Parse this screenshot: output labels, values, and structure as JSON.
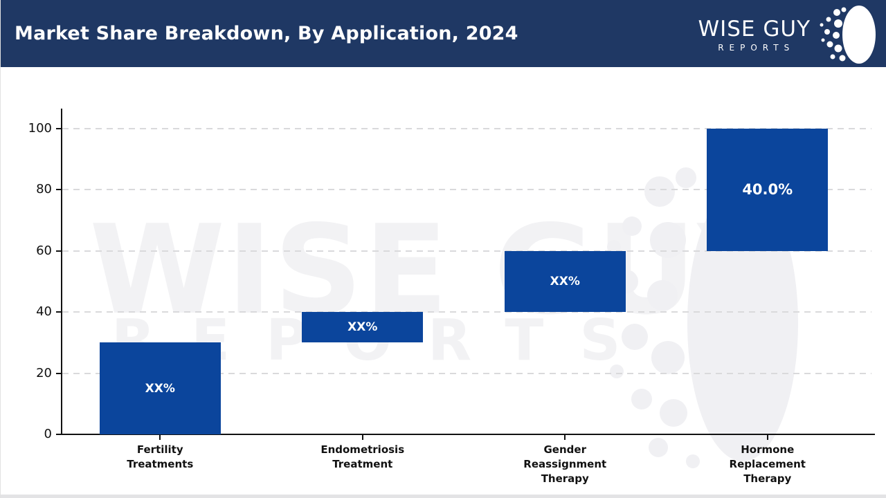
{
  "header": {
    "title": "Market Share Breakdown, By Application, 2024",
    "logo": {
      "line1": "WISE GUY",
      "line2": "REPORTS"
    }
  },
  "watermark": {
    "line1": "WISE GUY",
    "line2": "REPORTS"
  },
  "colors": {
    "header_bg": "#1f3864",
    "bar_fill": "#0b459c",
    "bar_label": "#ffffff",
    "gridline": "#d9d9db",
    "axis": "#111111",
    "watermark": "#f2f2f4"
  },
  "chart_data": {
    "type": "bar",
    "subtype": "waterfall",
    "title": "Market Share Breakdown, By Application, 2024",
    "xlabel": "",
    "ylabel": "",
    "ylim": [
      0,
      100
    ],
    "yticks": [
      0,
      20,
      40,
      60,
      80,
      100
    ],
    "grid": "horizontal-dashed",
    "legend": "none",
    "categories": [
      "Fertility\nTreatments",
      "Endometriosis\nTreatment",
      "Gender\nReassignment\nTherapy",
      "Hormone\nReplacement\nTherapy"
    ],
    "series": [
      {
        "name": "Market Share",
        "segments": [
          {
            "category": "Fertility Treatments",
            "start": 0,
            "end": 30,
            "value_label": "XX%"
          },
          {
            "category": "Endometriosis Treatment",
            "start": 30,
            "end": 40,
            "value_label": "XX%"
          },
          {
            "category": "Gender Reassignment Therapy",
            "start": 40,
            "end": 60,
            "value_label": "XX%"
          },
          {
            "category": "Hormone Replacement Therapy",
            "start": 60,
            "end": 100,
            "value_label": "40.0%"
          }
        ]
      }
    ]
  }
}
